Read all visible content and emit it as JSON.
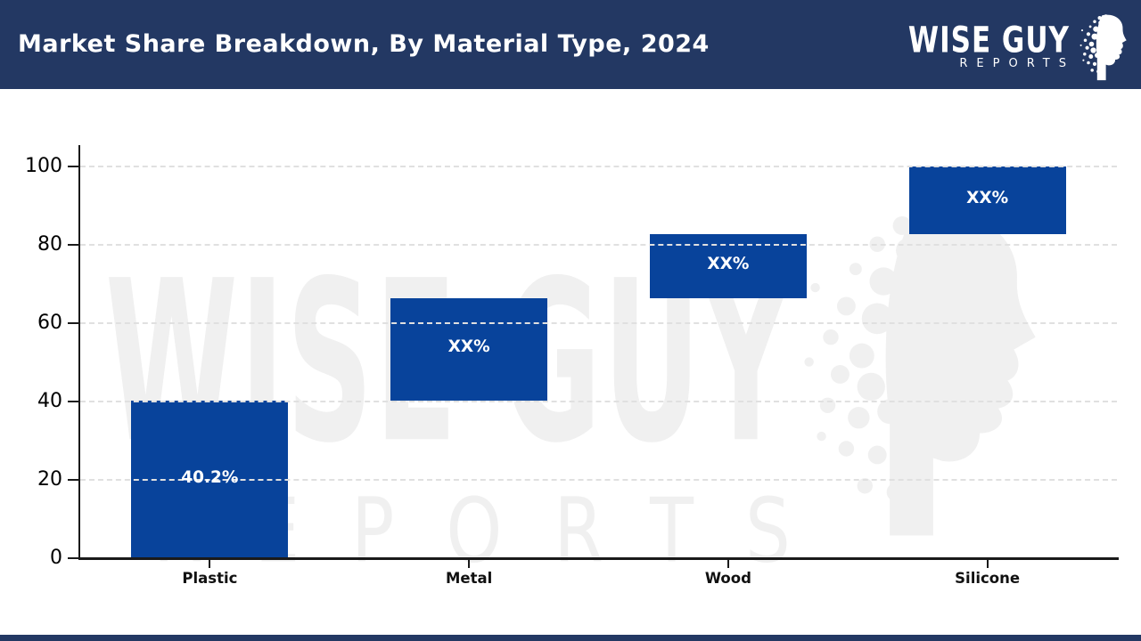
{
  "header": {
    "title": "Market Share Breakdown, By Material Type, 2024",
    "brand": {
      "line1": "WISE GUY",
      "line2": "REPORTS"
    }
  },
  "watermark": {
    "line1": "WISE GUY",
    "line2": "REPORTS"
  },
  "colors": {
    "header_navy": "#233863",
    "bar_blue": "#08439b",
    "bar_label_white": "#ffffff",
    "gridline_gray": "#e0e0e0",
    "axis_black": "#1a1a1a",
    "watermark_gray": "#f0f0f0"
  },
  "chart_data": {
    "type": "bar",
    "subtype": "waterfall",
    "title": "Market Share Breakdown, By Material Type, 2024",
    "xlabel": "",
    "ylabel": "",
    "ylim": [
      0,
      100
    ],
    "yticks": [
      0,
      20,
      40,
      60,
      80,
      100
    ],
    "grid": "horizontal-dashed",
    "legend": "none",
    "bar_color": "#08439b",
    "bar_label_color": "#ffffff",
    "categories": [
      "Plastic",
      "Metal",
      "Wood",
      "Silicone"
    ],
    "segments": [
      {
        "category": "Plastic",
        "start": 0,
        "end": 40.2,
        "label": "40.2%",
        "value": 40.2
      },
      {
        "category": "Metal",
        "start": 40.2,
        "end": 66.4,
        "label": "XX%",
        "value": 26.2
      },
      {
        "category": "Wood",
        "start": 66.4,
        "end": 82.8,
        "label": "XX%",
        "value": 16.4
      },
      {
        "category": "Silicone",
        "start": 82.8,
        "end": 100,
        "label": "XX%",
        "value": 17.2
      }
    ]
  }
}
